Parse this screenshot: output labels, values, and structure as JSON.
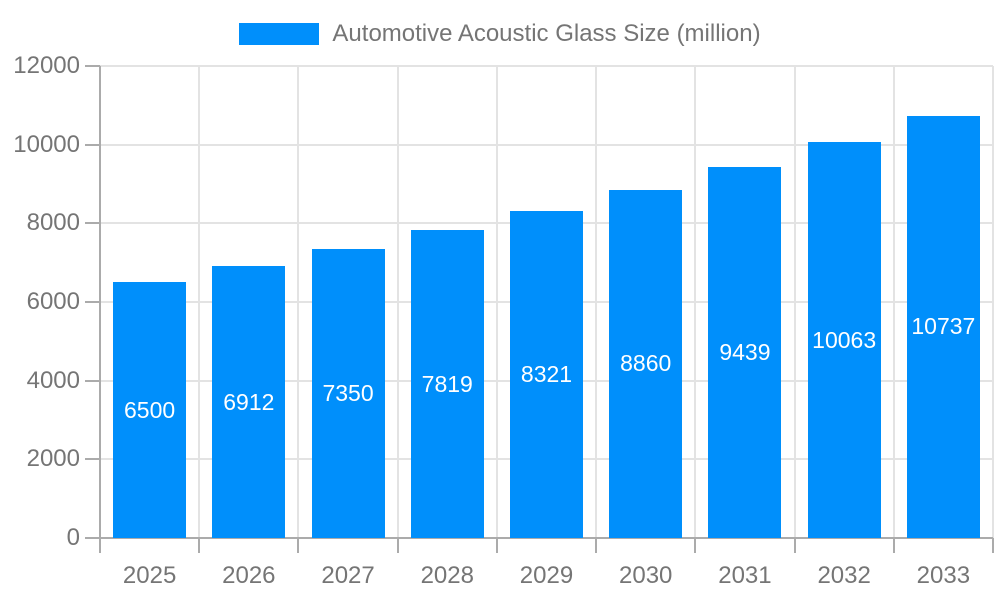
{
  "legend": {
    "label": "Automotive Acoustic Glass Size (million)"
  },
  "chart_data": {
    "type": "bar",
    "title": "Automotive Acoustic Glass Size (million)",
    "categories": [
      "2025",
      "2026",
      "2027",
      "2028",
      "2029",
      "2030",
      "2031",
      "2032",
      "2033"
    ],
    "values": [
      6500,
      6912,
      7350,
      7819,
      8321,
      8860,
      9439,
      10063,
      10737
    ],
    "value_labels": [
      "6500",
      "6912",
      "7350",
      "7819",
      "8321",
      "8860",
      "9439",
      "10063",
      "10737"
    ],
    "xlabel": "",
    "ylabel": "",
    "ylim": [
      0,
      12000
    ],
    "yticks": [
      0,
      2000,
      4000,
      6000,
      8000,
      10000,
      12000
    ],
    "grid": true,
    "legend_position": "top-center",
    "value_label_position": "inside-center",
    "colors": {
      "bar": "#008FFB",
      "grid": "#e3e3e3",
      "axis": "#ababab",
      "text": "#757575",
      "value_label": "#ffffff",
      "background": "#ffffff"
    }
  }
}
